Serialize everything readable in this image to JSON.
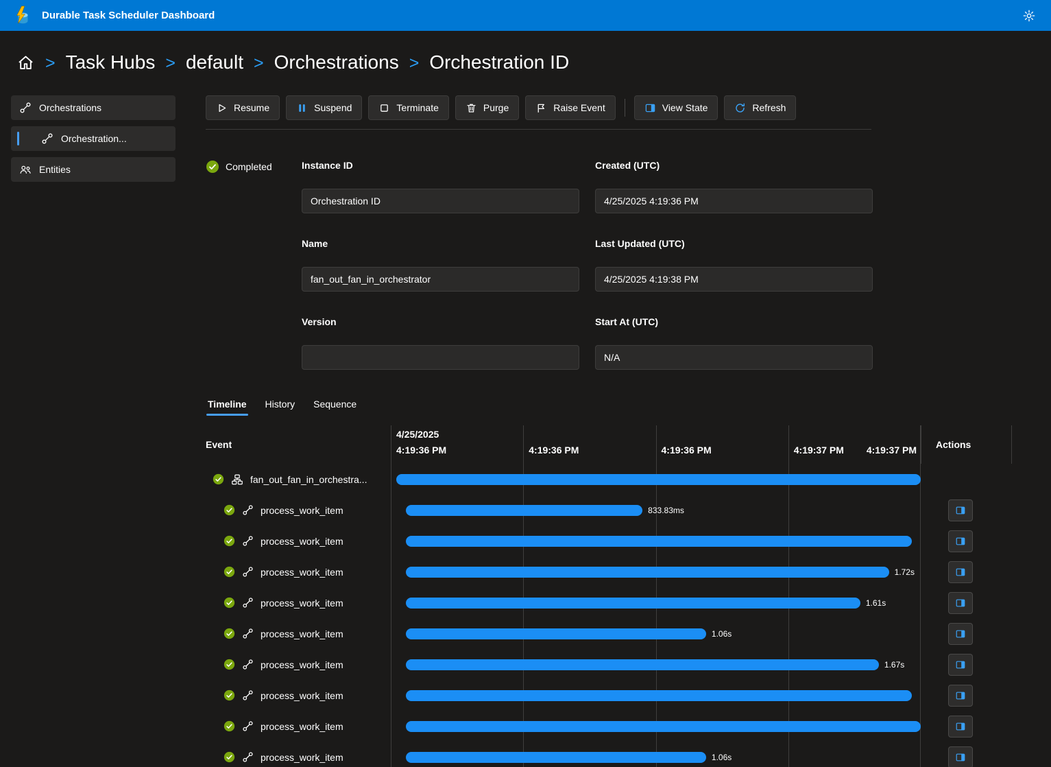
{
  "topbar": {
    "title": "Durable Task Scheduler Dashboard"
  },
  "breadcrumb": {
    "separator": ">",
    "items": [
      "Task Hubs",
      "default",
      "Orchestrations",
      "Orchestration ID"
    ]
  },
  "sidebar": {
    "items": [
      {
        "label": "Orchestrations",
        "icon": "workflow-icon",
        "selected": false
      },
      {
        "label": "Orchestration...",
        "icon": "workflow-icon",
        "selected": true
      },
      {
        "label": "Entities",
        "icon": "people-icon",
        "selected": false
      }
    ]
  },
  "toolbar": {
    "buttons": [
      {
        "label": "Resume",
        "icon": "play-icon"
      },
      {
        "label": "Suspend",
        "icon": "pause-icon"
      },
      {
        "label": "Terminate",
        "icon": "stop-icon"
      },
      {
        "label": "Purge",
        "icon": "trash-icon"
      },
      {
        "label": "Raise Event",
        "icon": "flag-icon"
      },
      {
        "label": "View State",
        "icon": "panel-icon"
      },
      {
        "label": "Refresh",
        "icon": "refresh-icon"
      }
    ]
  },
  "status": {
    "label": "Completed"
  },
  "fields": {
    "instance_id": {
      "label": "Instance ID",
      "value": "Orchestration ID"
    },
    "created": {
      "label": "Created (UTC)",
      "value": "4/25/2025 4:19:36 PM"
    },
    "name": {
      "label": "Name",
      "value": "fan_out_fan_in_orchestrator"
    },
    "last_updated": {
      "label": "Last Updated (UTC)",
      "value": "4/25/2025 4:19:38 PM"
    },
    "version": {
      "label": "Version",
      "value": ""
    },
    "start_at": {
      "label": "Start At (UTC)",
      "value": "N/A"
    }
  },
  "tabs": [
    {
      "label": "Timeline",
      "active": true
    },
    {
      "label": "History",
      "active": false
    },
    {
      "label": "Sequence",
      "active": false
    }
  ],
  "timeline": {
    "event_header": "Event",
    "actions_header": "Actions",
    "ticks": [
      {
        "date": "4/25/2025",
        "time": "4:19:36 PM"
      },
      {
        "time": "4:19:36 PM"
      },
      {
        "time": "4:19:36 PM"
      },
      {
        "time": "4:19:37 PM"
      },
      {
        "time": "4:19:37 PM"
      }
    ],
    "rows": [
      {
        "name": "fan_out_fan_in_orchestra...",
        "icon": "orchestration-icon",
        "status": "completed",
        "indent": false,
        "bar_start": 1.0,
        "bar_end": 100,
        "duration": "",
        "has_action": false
      },
      {
        "name": "process_work_item",
        "icon": "activity-icon",
        "status": "completed",
        "indent": true,
        "bar_start": 2.8,
        "bar_end": 47.5,
        "duration": "833.83ms",
        "has_action": true
      },
      {
        "name": "process_work_item",
        "icon": "activity-icon",
        "status": "completed",
        "indent": true,
        "bar_start": 2.8,
        "bar_end": 98.3,
        "duration": "",
        "has_action": true
      },
      {
        "name": "process_work_item",
        "icon": "activity-icon",
        "status": "completed",
        "indent": true,
        "bar_start": 2.8,
        "bar_end": 94.0,
        "duration": "1.72s",
        "has_action": true
      },
      {
        "name": "process_work_item",
        "icon": "activity-icon",
        "status": "completed",
        "indent": true,
        "bar_start": 2.8,
        "bar_end": 88.6,
        "duration": "1.61s",
        "has_action": true
      },
      {
        "name": "process_work_item",
        "icon": "activity-icon",
        "status": "completed",
        "indent": true,
        "bar_start": 2.8,
        "bar_end": 59.5,
        "duration": "1.06s",
        "has_action": true
      },
      {
        "name": "process_work_item",
        "icon": "activity-icon",
        "status": "completed",
        "indent": true,
        "bar_start": 2.8,
        "bar_end": 92.1,
        "duration": "1.67s",
        "has_action": true
      },
      {
        "name": "process_work_item",
        "icon": "activity-icon",
        "status": "completed",
        "indent": true,
        "bar_start": 2.8,
        "bar_end": 98.3,
        "duration": "",
        "has_action": true
      },
      {
        "name": "process_work_item",
        "icon": "activity-icon",
        "status": "completed",
        "indent": true,
        "bar_start": 2.8,
        "bar_end": 100,
        "duration": "",
        "has_action": true
      },
      {
        "name": "process_work_item",
        "icon": "activity-icon",
        "status": "completed",
        "indent": true,
        "bar_start": 2.8,
        "bar_end": 59.5,
        "duration": "1.06s",
        "has_action": true
      }
    ]
  },
  "colors": {
    "topbar": "#0078d4",
    "accent": "#479ef5",
    "bar": "#1b8ef5",
    "success_green": "#7ba70e"
  }
}
